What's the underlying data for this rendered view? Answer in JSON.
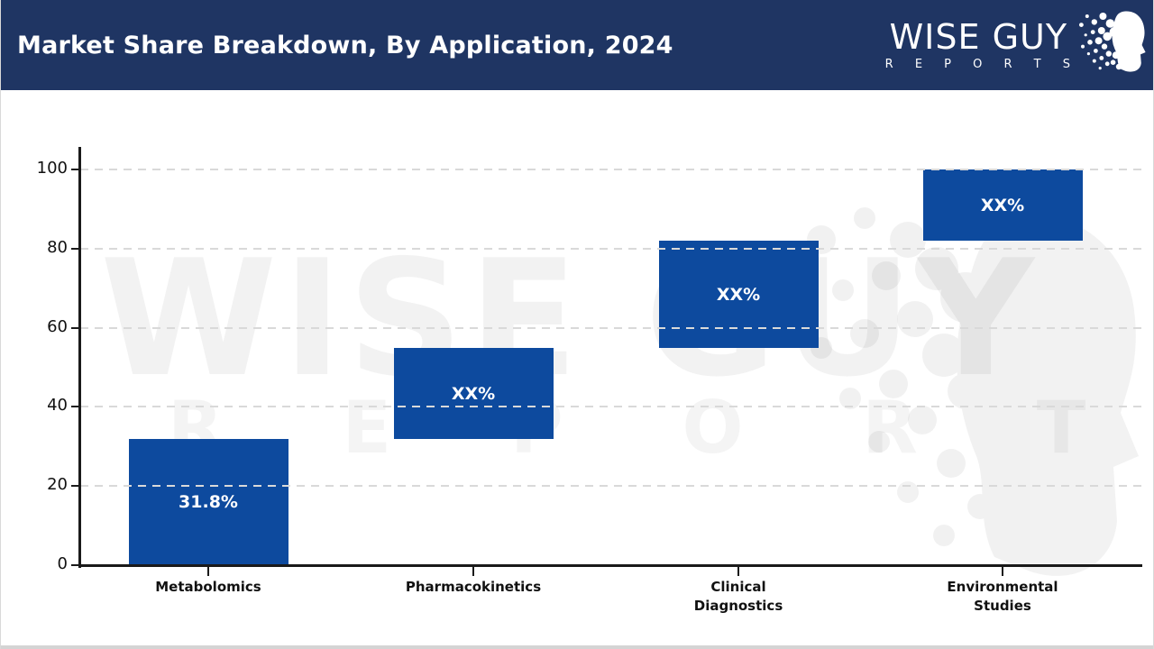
{
  "page": {
    "bg_color": "#FFFFFF",
    "border_color": "#D9D9D9"
  },
  "header": {
    "title": "Market Share Breakdown, By Application, 2024",
    "bg_color": "#1F3563",
    "title_color": "#FFFFFF",
    "logo": {
      "wordmark": "WISE GUY",
      "subtitle": "R E P O R T S",
      "icon": "wiseguy-head-icon"
    }
  },
  "watermark": {
    "line1": "WISE GUY",
    "line2": "R E P O R T S"
  },
  "chart_data": {
    "type": "bar",
    "variant": "waterfall",
    "title": "Market Share Breakdown, By Application, 2024",
    "categories": [
      "Metabolomics",
      "Pharmacokinetics",
      "Clinical Diagnostics",
      "Environmental Studies"
    ],
    "bars": [
      {
        "category": "Metabolomics",
        "lines": [
          "Metabolomics"
        ],
        "start": 0,
        "end": 31.8,
        "label": "31.8%"
      },
      {
        "category": "Pharmacokinetics",
        "lines": [
          "Pharmacokinetics"
        ],
        "start": 31.8,
        "end": 54.8,
        "label": "XX%"
      },
      {
        "category": "Clinical Diagnostics",
        "lines": [
          "Clinical",
          "Diagnostics"
        ],
        "start": 54.8,
        "end": 82,
        "label": "XX%"
      },
      {
        "category": "Environmental Studies",
        "lines": [
          "Environmental",
          "Studies"
        ],
        "start": 82,
        "end": 100,
        "label": "XX%"
      }
    ],
    "xlabel": "",
    "ylabel": "",
    "ylim": [
      0,
      100
    ],
    "yticks": [
      0,
      20,
      40,
      60,
      80,
      100
    ],
    "grid": "horizontal-dashed",
    "legend": "none",
    "bar_color": "#0D4A9E",
    "bar_label_color": "#FFFFFF",
    "axis_color": "#1A1A1A",
    "grid_color": "#D9D9D9",
    "tick_label_color": "#111111"
  }
}
